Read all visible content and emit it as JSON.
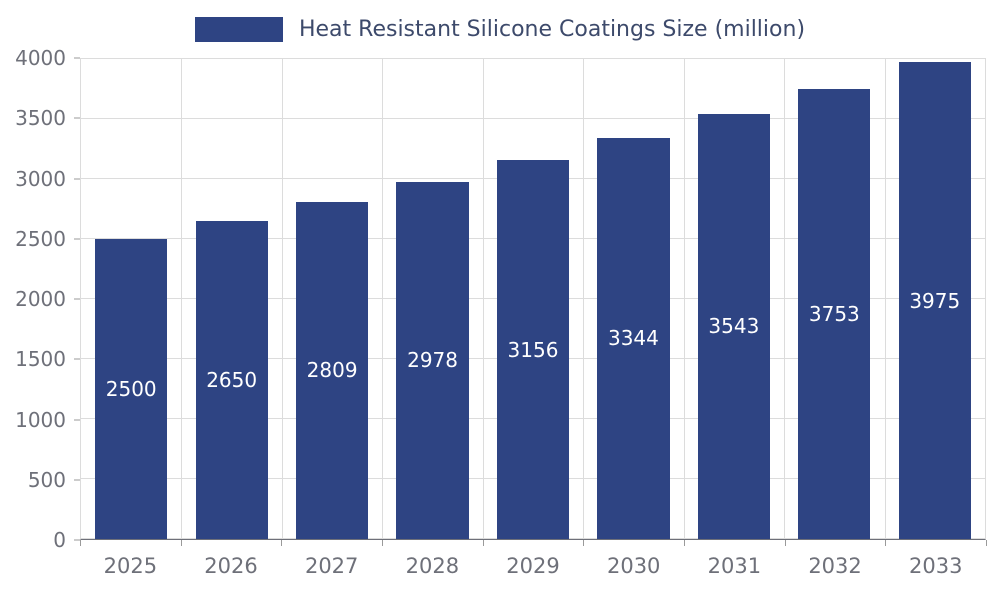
{
  "chart_data": {
    "type": "bar",
    "title": "Heat Resistant Silicone Coatings Size (million)",
    "categories": [
      "2025",
      "2026",
      "2027",
      "2028",
      "2029",
      "2030",
      "2031",
      "2032",
      "2033"
    ],
    "values": [
      2500,
      2650,
      2809,
      2978,
      3156,
      3344,
      3543,
      3753,
      3975
    ],
    "xlabel": "",
    "ylabel": "",
    "ylim": [
      0,
      4000
    ],
    "yticks": [
      0,
      500,
      1000,
      1500,
      2000,
      2500,
      3000,
      3500,
      4000
    ],
    "grid": true,
    "legend_position": "top",
    "bar_color": "#2e4483",
    "value_label_color": "#ffffff",
    "axis_label_color": "#6e7079",
    "grid_color": "#dcdcdc",
    "title_color": "#3d4a6b"
  }
}
